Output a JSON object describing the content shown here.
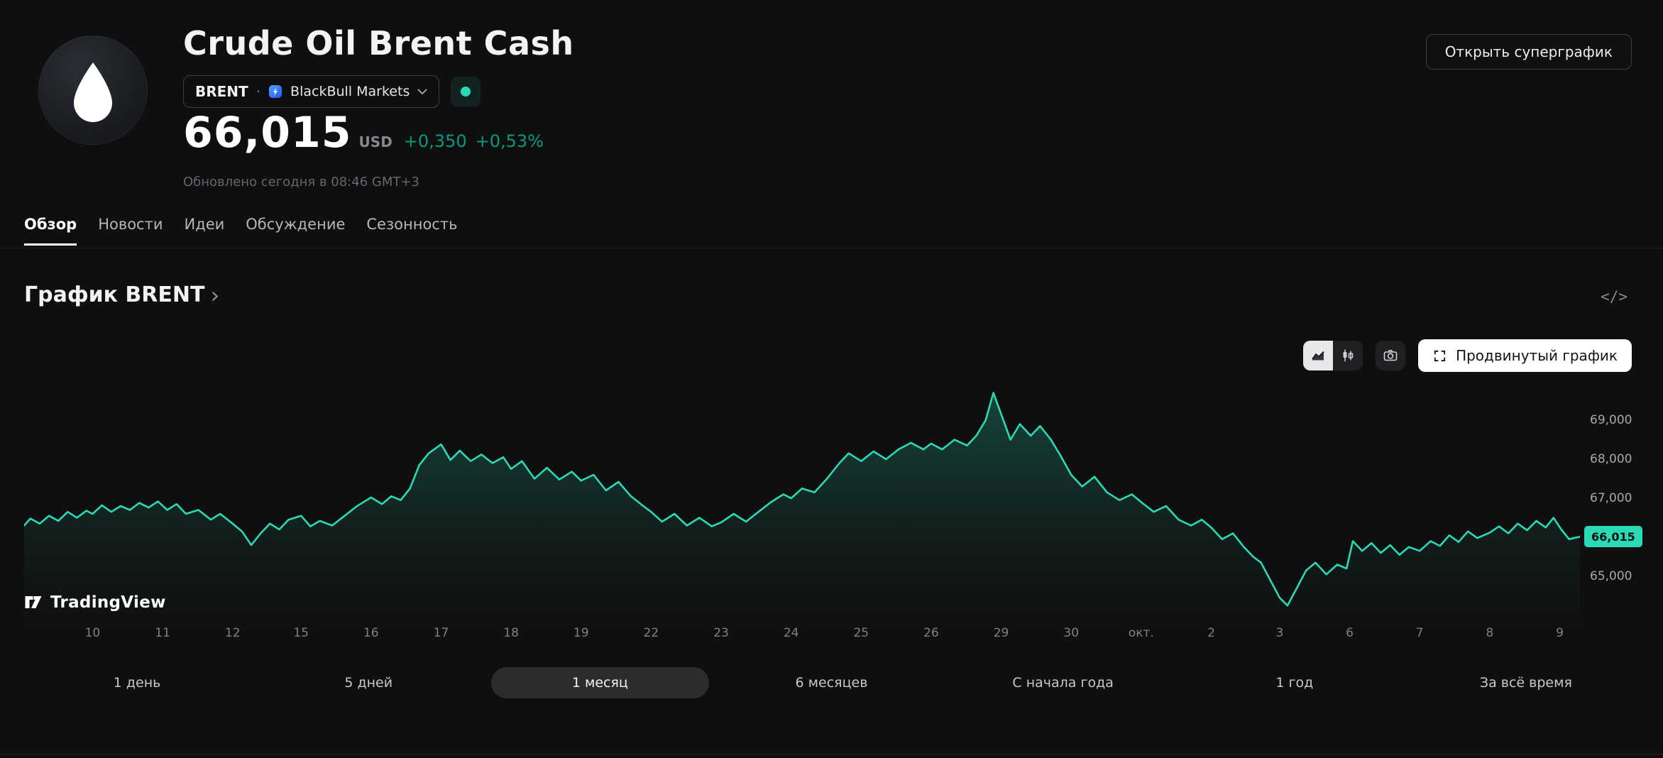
{
  "colors": {
    "accent": "#2bd9b7",
    "up": "#089981",
    "background": "#0f0f0f",
    "badge_text": "#07130f"
  },
  "header": {
    "title": "Crude Oil Brent Cash",
    "symbol": "BRENT",
    "separator": "·",
    "broker": "BlackBull Markets",
    "price": "66,015",
    "currency": "USD",
    "change_abs": "+0,350",
    "change_pct": "+0,53%",
    "updated": "Обновлено сегодня в 08:46 GMT+3",
    "superchart_button": "Открыть суперграфик"
  },
  "tabs": [
    {
      "key": "overview",
      "label": "Обзор",
      "active": true
    },
    {
      "key": "news",
      "label": "Новости",
      "active": false
    },
    {
      "key": "ideas",
      "label": "Идеи",
      "active": false
    },
    {
      "key": "discussion",
      "label": "Обсуждение",
      "active": false
    },
    {
      "key": "seasonality",
      "label": "Сезонность",
      "active": false
    }
  ],
  "chart_section": {
    "heading": "График BRENT",
    "chevron": "›",
    "code_icon": "</>",
    "advanced_button": "Продвинутый график"
  },
  "watermark": {
    "label": "TradingView"
  },
  "ranges": [
    {
      "key": "1d",
      "label": "1 день",
      "active": false
    },
    {
      "key": "5d",
      "label": "5 дней",
      "active": false
    },
    {
      "key": "1m",
      "label": "1 месяц",
      "active": true
    },
    {
      "key": "6m",
      "label": "6 месяцев",
      "active": false
    },
    {
      "key": "ytd",
      "label": "С начала года",
      "active": false
    },
    {
      "key": "1y",
      "label": "1 год",
      "active": false
    },
    {
      "key": "all",
      "label": "За всё время",
      "active": false
    }
  ],
  "chart_data": {
    "type": "area",
    "title": "График BRENT",
    "symbol": "BRENT",
    "interval": "1 месяц",
    "currency": "USD",
    "last_price": 66015,
    "last_price_label": "66,015",
    "ylim": [
      63545,
      70127
    ],
    "y_ticks": [
      {
        "label": "69,000",
        "value": 69000
      },
      {
        "label": "68,000",
        "value": 68000
      },
      {
        "label": "67,000",
        "value": 67000
      },
      {
        "label": "65,000",
        "value": 65000
      }
    ],
    "x_ticks": [
      {
        "label": "10",
        "pos": 0.044
      },
      {
        "label": "11",
        "pos": 0.089
      },
      {
        "label": "12",
        "pos": 0.134
      },
      {
        "label": "15",
        "pos": 0.178
      },
      {
        "label": "16",
        "pos": 0.223
      },
      {
        "label": "17",
        "pos": 0.268
      },
      {
        "label": "18",
        "pos": 0.313
      },
      {
        "label": "19",
        "pos": 0.358
      },
      {
        "label": "22",
        "pos": 0.403
      },
      {
        "label": "23",
        "pos": 0.448
      },
      {
        "label": "24",
        "pos": 0.493
      },
      {
        "label": "25",
        "pos": 0.538
      },
      {
        "label": "26",
        "pos": 0.583
      },
      {
        "label": "29",
        "pos": 0.628
      },
      {
        "label": "30",
        "pos": 0.673
      },
      {
        "label": "окт.",
        "pos": 0.718
      },
      {
        "label": "2",
        "pos": 0.763
      },
      {
        "label": "3",
        "pos": 0.807
      },
      {
        "label": "6",
        "pos": 0.852
      },
      {
        "label": "7",
        "pos": 0.897
      },
      {
        "label": "8",
        "pos": 0.942
      },
      {
        "label": "9",
        "pos": 0.987
      }
    ],
    "points": [
      [
        0.0,
        66300
      ],
      [
        0.004,
        66480
      ],
      [
        0.01,
        66350
      ],
      [
        0.016,
        66550
      ],
      [
        0.022,
        66420
      ],
      [
        0.028,
        66650
      ],
      [
        0.034,
        66500
      ],
      [
        0.04,
        66680
      ],
      [
        0.044,
        66600
      ],
      [
        0.05,
        66820
      ],
      [
        0.056,
        66650
      ],
      [
        0.062,
        66800
      ],
      [
        0.068,
        66700
      ],
      [
        0.074,
        66880
      ],
      [
        0.08,
        66760
      ],
      [
        0.086,
        66920
      ],
      [
        0.092,
        66700
      ],
      [
        0.098,
        66850
      ],
      [
        0.104,
        66600
      ],
      [
        0.112,
        66700
      ],
      [
        0.12,
        66450
      ],
      [
        0.126,
        66600
      ],
      [
        0.134,
        66350
      ],
      [
        0.14,
        66150
      ],
      [
        0.146,
        65800
      ],
      [
        0.152,
        66100
      ],
      [
        0.158,
        66350
      ],
      [
        0.164,
        66200
      ],
      [
        0.17,
        66450
      ],
      [
        0.178,
        66550
      ],
      [
        0.184,
        66280
      ],
      [
        0.19,
        66420
      ],
      [
        0.198,
        66300
      ],
      [
        0.206,
        66550
      ],
      [
        0.214,
        66800
      ],
      [
        0.223,
        67020
      ],
      [
        0.23,
        66850
      ],
      [
        0.236,
        67050
      ],
      [
        0.242,
        66950
      ],
      [
        0.248,
        67250
      ],
      [
        0.254,
        67850
      ],
      [
        0.26,
        68150
      ],
      [
        0.268,
        68380
      ],
      [
        0.274,
        67980
      ],
      [
        0.28,
        68220
      ],
      [
        0.287,
        67950
      ],
      [
        0.294,
        68120
      ],
      [
        0.301,
        67900
      ],
      [
        0.308,
        68050
      ],
      [
        0.313,
        67750
      ],
      [
        0.32,
        67950
      ],
      [
        0.328,
        67500
      ],
      [
        0.336,
        67780
      ],
      [
        0.344,
        67480
      ],
      [
        0.352,
        67680
      ],
      [
        0.358,
        67450
      ],
      [
        0.366,
        67600
      ],
      [
        0.374,
        67200
      ],
      [
        0.382,
        67420
      ],
      [
        0.39,
        67050
      ],
      [
        0.398,
        66800
      ],
      [
        0.403,
        66650
      ],
      [
        0.41,
        66400
      ],
      [
        0.418,
        66600
      ],
      [
        0.426,
        66300
      ],
      [
        0.434,
        66500
      ],
      [
        0.442,
        66280
      ],
      [
        0.448,
        66380
      ],
      [
        0.456,
        66600
      ],
      [
        0.464,
        66400
      ],
      [
        0.472,
        66650
      ],
      [
        0.48,
        66900
      ],
      [
        0.488,
        67100
      ],
      [
        0.493,
        67000
      ],
      [
        0.5,
        67250
      ],
      [
        0.508,
        67150
      ],
      [
        0.516,
        67500
      ],
      [
        0.524,
        67900
      ],
      [
        0.53,
        68150
      ],
      [
        0.538,
        67950
      ],
      [
        0.546,
        68200
      ],
      [
        0.554,
        68000
      ],
      [
        0.562,
        68250
      ],
      [
        0.57,
        68420
      ],
      [
        0.578,
        68250
      ],
      [
        0.583,
        68400
      ],
      [
        0.59,
        68250
      ],
      [
        0.598,
        68500
      ],
      [
        0.606,
        68350
      ],
      [
        0.612,
        68600
      ],
      [
        0.618,
        69000
      ],
      [
        0.623,
        69700
      ],
      [
        0.628,
        69150
      ],
      [
        0.634,
        68500
      ],
      [
        0.64,
        68900
      ],
      [
        0.647,
        68600
      ],
      [
        0.653,
        68850
      ],
      [
        0.66,
        68500
      ],
      [
        0.666,
        68100
      ],
      [
        0.673,
        67600
      ],
      [
        0.68,
        67300
      ],
      [
        0.688,
        67550
      ],
      [
        0.696,
        67150
      ],
      [
        0.704,
        66950
      ],
      [
        0.712,
        67100
      ],
      [
        0.718,
        66900
      ],
      [
        0.726,
        66650
      ],
      [
        0.734,
        66800
      ],
      [
        0.742,
        66450
      ],
      [
        0.75,
        66300
      ],
      [
        0.757,
        66450
      ],
      [
        0.763,
        66250
      ],
      [
        0.77,
        65950
      ],
      [
        0.777,
        66100
      ],
      [
        0.784,
        65750
      ],
      [
        0.79,
        65500
      ],
      [
        0.795,
        65350
      ],
      [
        0.801,
        64900
      ],
      [
        0.807,
        64450
      ],
      [
        0.812,
        64250
      ],
      [
        0.818,
        64700
      ],
      [
        0.824,
        65150
      ],
      [
        0.83,
        65350
      ],
      [
        0.837,
        65050
      ],
      [
        0.844,
        65300
      ],
      [
        0.85,
        65200
      ],
      [
        0.854,
        65900
      ],
      [
        0.86,
        65650
      ],
      [
        0.866,
        65850
      ],
      [
        0.872,
        65600
      ],
      [
        0.878,
        65800
      ],
      [
        0.884,
        65550
      ],
      [
        0.89,
        65750
      ],
      [
        0.897,
        65650
      ],
      [
        0.904,
        65900
      ],
      [
        0.91,
        65780
      ],
      [
        0.916,
        66050
      ],
      [
        0.922,
        65880
      ],
      [
        0.928,
        66150
      ],
      [
        0.934,
        65980
      ],
      [
        0.942,
        66120
      ],
      [
        0.948,
        66280
      ],
      [
        0.954,
        66100
      ],
      [
        0.96,
        66350
      ],
      [
        0.966,
        66180
      ],
      [
        0.972,
        66420
      ],
      [
        0.978,
        66250
      ],
      [
        0.983,
        66500
      ],
      [
        0.988,
        66200
      ],
      [
        0.993,
        65950
      ],
      [
        1.0,
        66015
      ]
    ]
  }
}
